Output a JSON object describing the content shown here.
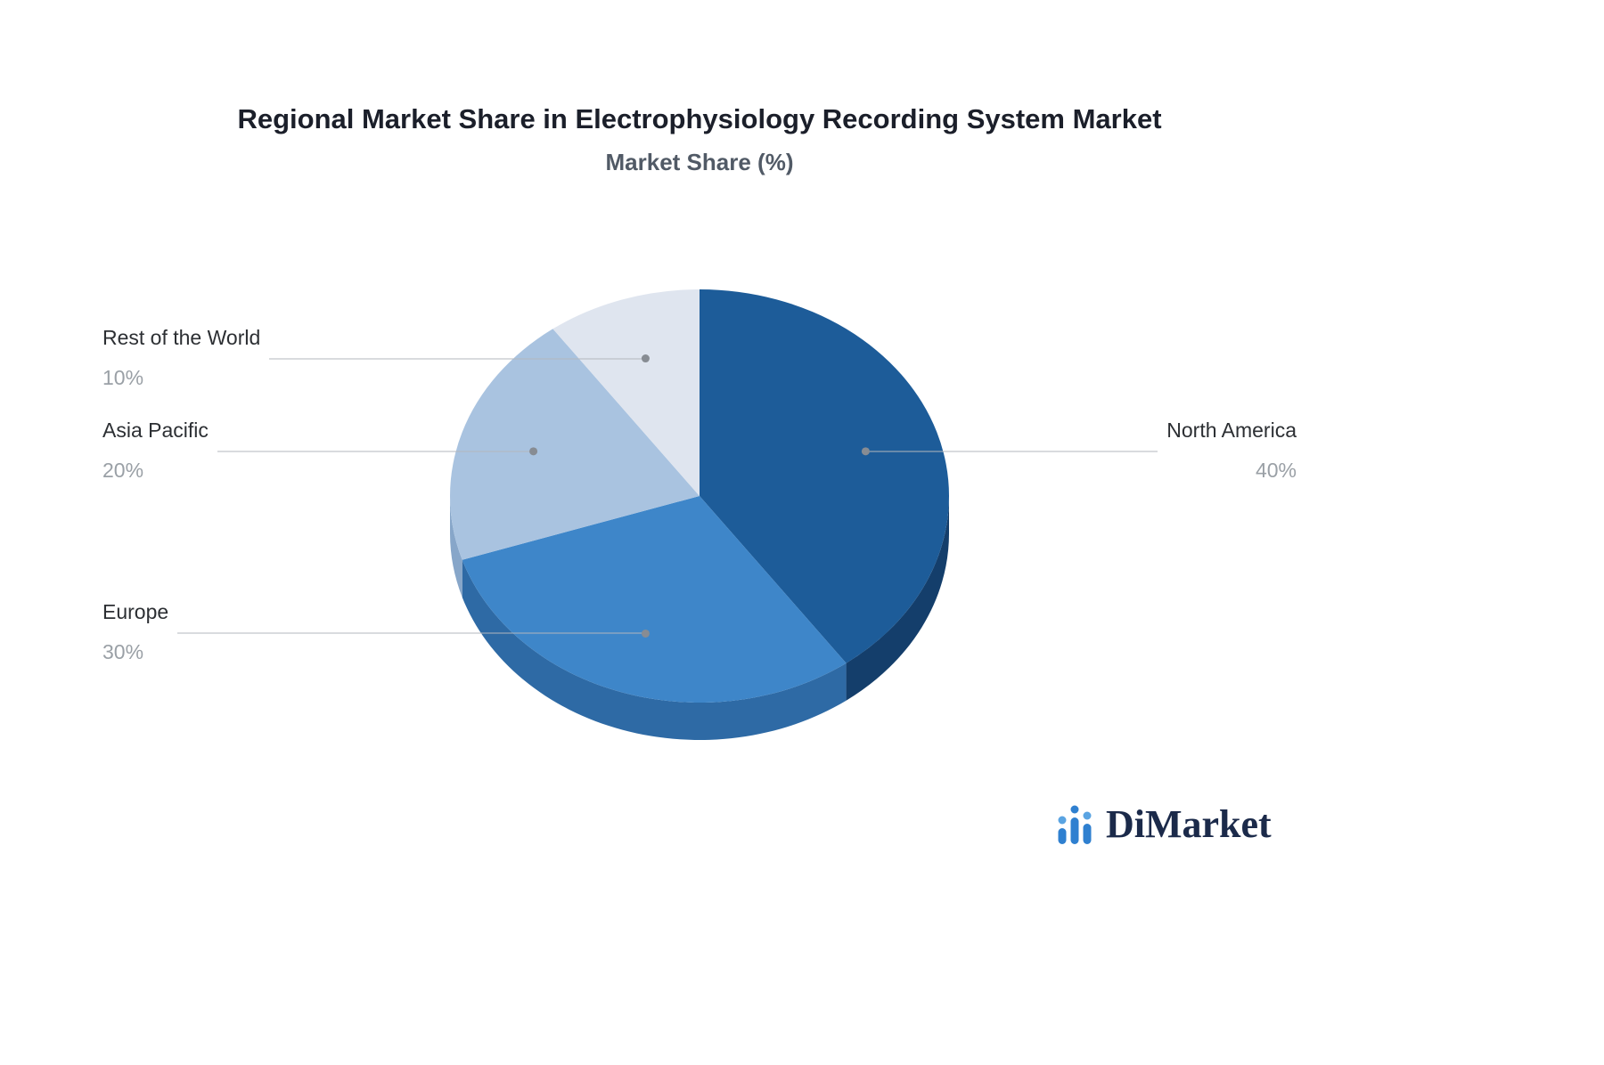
{
  "chart_data": {
    "type": "pie",
    "title": "Regional Market Share in Electrophysiology Recording System Market",
    "subtitle": "Market Share (%)",
    "unit": "%",
    "labels": [
      "North America",
      "Europe",
      "Asia Pacific",
      "Rest of the World"
    ],
    "values": [
      40,
      30,
      20,
      10
    ],
    "display_values": [
      "40%",
      "30%",
      "20%",
      "10%"
    ],
    "colors": [
      "#1d5c99",
      "#3e86c9",
      "#a9c3e0",
      "#dfe5ef"
    ],
    "side_colors": [
      "#143e6b",
      "#2e6aa5",
      "#87a6c9",
      "#c3cede"
    ],
    "effect": "3d",
    "start_angle_deg": 0,
    "direction": "clockwise",
    "legend_position": "leader-lines",
    "label_color": "#2c2f33",
    "value_color": "#9aa0a6",
    "leader_line_color": "#b3b7bd",
    "leader_dot_color": "#878c93"
  },
  "brand": {
    "name": "DiMarket",
    "icon": "bar-chart-icon",
    "text_color": "#1b2a4a",
    "icon_color": "#2f80d0"
  }
}
